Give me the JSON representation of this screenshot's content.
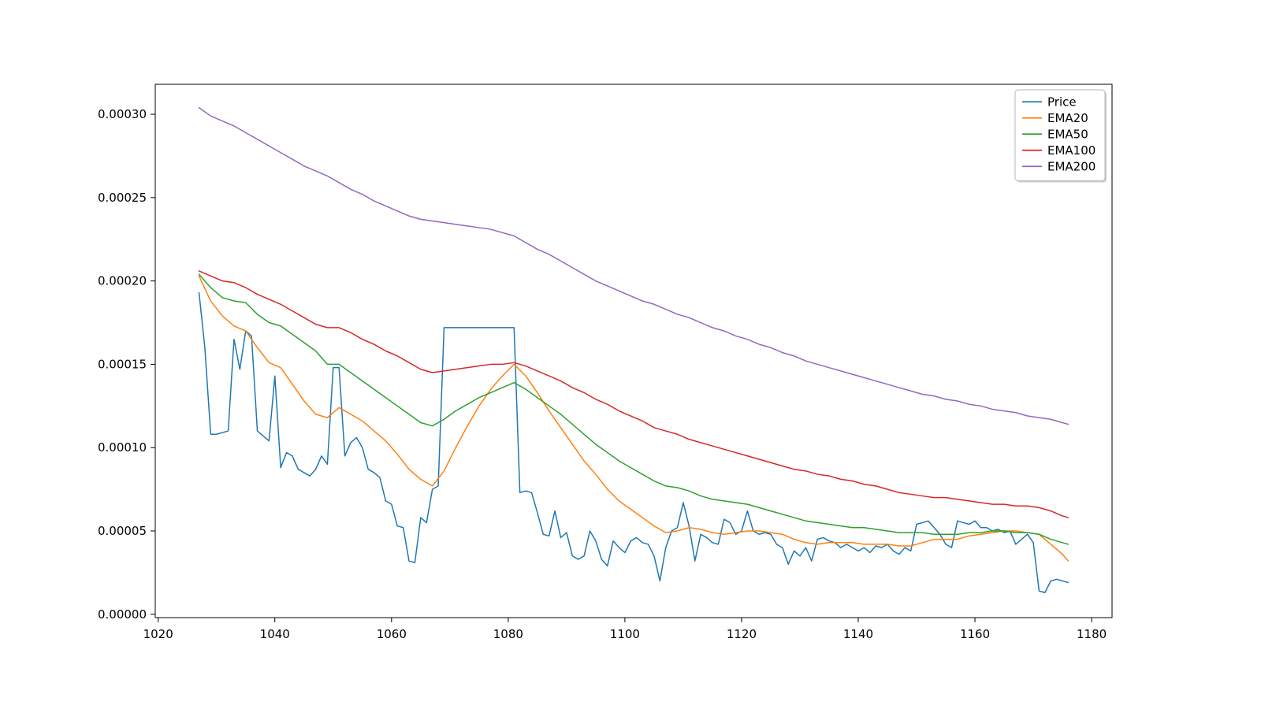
{
  "figure": {
    "background": "#ffffff",
    "plot_border_color": "#000000",
    "tick_color": "#000000"
  },
  "chart_data": {
    "type": "line",
    "title": "",
    "xlabel": "",
    "ylabel": "",
    "grid": false,
    "xlim": [
      1019.5,
      1183.5
    ],
    "ylim": [
      -2e-06,
      0.000318
    ],
    "xticks": [
      1020,
      1040,
      1060,
      1080,
      1100,
      1120,
      1140,
      1160,
      1180
    ],
    "xtick_labels": [
      "1020",
      "1040",
      "1060",
      "1080",
      "1100",
      "1120",
      "1140",
      "1160",
      "1180"
    ],
    "yticks": [
      0.0,
      5e-05,
      0.0001,
      0.00015,
      0.0002,
      0.00025,
      0.0003
    ],
    "ytick_labels": [
      "0.00000",
      "0.00005",
      "0.00010",
      "0.00015",
      "0.00020",
      "0.00025",
      "0.00030"
    ],
    "legend": {
      "position": "upper right",
      "entries": [
        "Price",
        "EMA20",
        "EMA50",
        "EMA100",
        "EMA200"
      ]
    },
    "ema_x": [
      1027,
      1029,
      1031,
      1033,
      1035,
      1037,
      1039,
      1041,
      1043,
      1045,
      1047,
      1049,
      1051,
      1053,
      1055,
      1057,
      1059,
      1061,
      1063,
      1065,
      1067,
      1069,
      1071,
      1073,
      1075,
      1077,
      1079,
      1081,
      1083,
      1085,
      1087,
      1089,
      1091,
      1093,
      1095,
      1097,
      1099,
      1101,
      1103,
      1105,
      1107,
      1109,
      1111,
      1113,
      1115,
      1117,
      1119,
      1121,
      1123,
      1125,
      1127,
      1129,
      1131,
      1133,
      1135,
      1137,
      1139,
      1141,
      1143,
      1145,
      1147,
      1149,
      1151,
      1153,
      1155,
      1157,
      1159,
      1161,
      1163,
      1165,
      1167,
      1169,
      1171,
      1173,
      1175,
      1176
    ],
    "series": [
      {
        "name": "Price",
        "color": "#1f77b4",
        "x": [
          1027,
          1028,
          1029,
          1030,
          1031,
          1032,
          1033,
          1034,
          1035,
          1036,
          1037,
          1038,
          1039,
          1040,
          1041,
          1042,
          1043,
          1044,
          1045,
          1046,
          1047,
          1048,
          1049,
          1050,
          1051,
          1052,
          1053,
          1054,
          1055,
          1056,
          1057,
          1058,
          1059,
          1060,
          1061,
          1062,
          1063,
          1064,
          1065,
          1066,
          1067,
          1068,
          1069,
          1070,
          1071,
          1072,
          1073,
          1074,
          1075,
          1076,
          1077,
          1078,
          1079,
          1080,
          1081,
          1082,
          1083,
          1084,
          1085,
          1086,
          1087,
          1088,
          1089,
          1090,
          1091,
          1092,
          1093,
          1094,
          1095,
          1096,
          1097,
          1098,
          1099,
          1100,
          1101,
          1102,
          1103,
          1104,
          1105,
          1106,
          1107,
          1108,
          1109,
          1110,
          1111,
          1112,
          1113,
          1114,
          1115,
          1116,
          1117,
          1118,
          1119,
          1120,
          1121,
          1122,
          1123,
          1124,
          1125,
          1126,
          1127,
          1128,
          1129,
          1130,
          1131,
          1132,
          1133,
          1134,
          1135,
          1136,
          1137,
          1138,
          1139,
          1140,
          1141,
          1142,
          1143,
          1144,
          1145,
          1146,
          1147,
          1148,
          1149,
          1150,
          1151,
          1152,
          1153,
          1154,
          1155,
          1156,
          1157,
          1158,
          1159,
          1160,
          1161,
          1162,
          1163,
          1164,
          1165,
          1166,
          1167,
          1168,
          1169,
          1170,
          1171,
          1172,
          1173,
          1174,
          1175,
          1176
        ],
        "y": [
          0.000193,
          0.00016,
          0.000108,
          0.000108,
          0.000109,
          0.00011,
          0.000165,
          0.000147,
          0.00017,
          0.000167,
          0.00011,
          0.000107,
          0.000104,
          0.000143,
          8.8e-05,
          9.7e-05,
          9.5e-05,
          8.7e-05,
          8.5e-05,
          8.3e-05,
          8.7e-05,
          9.5e-05,
          9e-05,
          0.000148,
          0.000148,
          9.5e-05,
          0.000103,
          0.000106,
          0.0001,
          8.7e-05,
          8.5e-05,
          8.2e-05,
          6.8e-05,
          6.6e-05,
          5.3e-05,
          5.2e-05,
          3.2e-05,
          3.1e-05,
          5.8e-05,
          5.5e-05,
          7.5e-05,
          7.7e-05,
          0.000172,
          0.000172,
          0.000172,
          0.000172,
          0.000172,
          0.000172,
          0.000172,
          0.000172,
          0.000172,
          0.000172,
          0.000172,
          0.000172,
          0.000172,
          7.3e-05,
          7.4e-05,
          7.3e-05,
          6.1e-05,
          4.8e-05,
          4.7e-05,
          6.2e-05,
          4.6e-05,
          4.9e-05,
          3.5e-05,
          3.3e-05,
          3.5e-05,
          5e-05,
          4.4e-05,
          3.3e-05,
          2.9e-05,
          4.4e-05,
          4e-05,
          3.7e-05,
          4.4e-05,
          4.6e-05,
          4.3e-05,
          4.2e-05,
          3.5e-05,
          2e-05,
          4e-05,
          5e-05,
          5.2e-05,
          6.7e-05,
          5.3e-05,
          3.2e-05,
          4.8e-05,
          4.6e-05,
          4.3e-05,
          4.2e-05,
          5.7e-05,
          5.5e-05,
          4.8e-05,
          5e-05,
          6.2e-05,
          5e-05,
          4.8e-05,
          4.9e-05,
          4.8e-05,
          4.2e-05,
          4e-05,
          3e-05,
          3.8e-05,
          3.5e-05,
          4e-05,
          3.2e-05,
          4.5e-05,
          4.6e-05,
          4.4e-05,
          4.3e-05,
          4e-05,
          4.2e-05,
          4e-05,
          3.8e-05,
          4e-05,
          3.7e-05,
          4.1e-05,
          4e-05,
          4.2e-05,
          3.8e-05,
          3.6e-05,
          4e-05,
          3.8e-05,
          5.4e-05,
          5.5e-05,
          5.6e-05,
          5.2e-05,
          4.8e-05,
          4.2e-05,
          4e-05,
          5.6e-05,
          5.5e-05,
          5.4e-05,
          5.6e-05,
          5.2e-05,
          5.2e-05,
          5e-05,
          5.1e-05,
          4.9e-05,
          5e-05,
          4.2e-05,
          4.5e-05,
          4.8e-05,
          4.3e-05,
          1.4e-05,
          1.3e-05,
          2e-05,
          2.1e-05,
          2e-05,
          1.9e-05
        ]
      },
      {
        "name": "EMA20",
        "color": "#ff7f0e",
        "x_ref": "ema_x",
        "y": [
          0.000203,
          0.000188,
          0.000179,
          0.000173,
          0.00017,
          0.00016,
          0.000151,
          0.000148,
          0.000138,
          0.000128,
          0.00012,
          0.000118,
          0.000124,
          0.00012,
          0.000116,
          0.00011,
          0.000104,
          9.6e-05,
          8.7e-05,
          8.1e-05,
          7.7e-05,
          8.6e-05,
          0.0001,
          0.000113,
          0.000125,
          0.000135,
          0.000143,
          0.00015,
          0.000143,
          0.000133,
          0.000122,
          0.000112,
          0.000102,
          9.2e-05,
          8.4e-05,
          7.5e-05,
          6.8e-05,
          6.3e-05,
          5.8e-05,
          5.3e-05,
          4.9e-05,
          5e-05,
          5.2e-05,
          5.1e-05,
          4.9e-05,
          4.8e-05,
          4.9e-05,
          5e-05,
          5e-05,
          4.9e-05,
          4.8e-05,
          4.5e-05,
          4.3e-05,
          4.2e-05,
          4.3e-05,
          4.3e-05,
          4.3e-05,
          4.2e-05,
          4.2e-05,
          4.2e-05,
          4.1e-05,
          4.1e-05,
          4.3e-05,
          4.5e-05,
          4.5e-05,
          4.5e-05,
          4.7e-05,
          4.8e-05,
          4.9e-05,
          5e-05,
          5e-05,
          4.9e-05,
          4.8e-05,
          4.2e-05,
          3.6e-05,
          3.2e-05
        ]
      },
      {
        "name": "EMA50",
        "color": "#2ca02c",
        "x_ref": "ema_x",
        "y": [
          0.000204,
          0.000196,
          0.00019,
          0.000188,
          0.000187,
          0.00018,
          0.000175,
          0.000173,
          0.000168,
          0.000163,
          0.000158,
          0.00015,
          0.00015,
          0.000145,
          0.00014,
          0.000135,
          0.00013,
          0.000125,
          0.00012,
          0.000115,
          0.000113,
          0.000117,
          0.000122,
          0.000126,
          0.00013,
          0.000133,
          0.000136,
          0.000139,
          0.000135,
          0.00013,
          0.000125,
          0.00012,
          0.000114,
          0.000108,
          0.000102,
          9.7e-05,
          9.2e-05,
          8.8e-05,
          8.4e-05,
          8e-05,
          7.7e-05,
          7.6e-05,
          7.4e-05,
          7.1e-05,
          6.9e-05,
          6.8e-05,
          6.7e-05,
          6.6e-05,
          6.4e-05,
          6.2e-05,
          6e-05,
          5.8e-05,
          5.6e-05,
          5.5e-05,
          5.4e-05,
          5.3e-05,
          5.2e-05,
          5.2e-05,
          5.1e-05,
          5e-05,
          4.9e-05,
          4.9e-05,
          4.9e-05,
          4.8e-05,
          4.8e-05,
          4.8e-05,
          4.9e-05,
          4.9e-05,
          5e-05,
          5e-05,
          4.9e-05,
          4.9e-05,
          4.8e-05,
          4.5e-05,
          4.3e-05,
          4.2e-05
        ]
      },
      {
        "name": "EMA100",
        "color": "#d62728",
        "x_ref": "ema_x",
        "y": [
          0.000206,
          0.000203,
          0.0002,
          0.000199,
          0.000196,
          0.000192,
          0.000189,
          0.000186,
          0.000182,
          0.000178,
          0.000174,
          0.000172,
          0.000172,
          0.000169,
          0.000165,
          0.000162,
          0.000158,
          0.000155,
          0.000151,
          0.000147,
          0.000145,
          0.000146,
          0.000147,
          0.000148,
          0.000149,
          0.00015,
          0.00015,
          0.000151,
          0.000149,
          0.000146,
          0.000143,
          0.00014,
          0.000136,
          0.000133,
          0.000129,
          0.000126,
          0.000122,
          0.000119,
          0.000116,
          0.000112,
          0.00011,
          0.000108,
          0.000105,
          0.000103,
          0.000101,
          9.9e-05,
          9.7e-05,
          9.5e-05,
          9.3e-05,
          9.1e-05,
          8.9e-05,
          8.7e-05,
          8.6e-05,
          8.4e-05,
          8.3e-05,
          8.1e-05,
          8e-05,
          7.8e-05,
          7.7e-05,
          7.5e-05,
          7.3e-05,
          7.2e-05,
          7.1e-05,
          7e-05,
          7e-05,
          6.9e-05,
          6.8e-05,
          6.7e-05,
          6.6e-05,
          6.6e-05,
          6.5e-05,
          6.5e-05,
          6.4e-05,
          6.2e-05,
          5.9e-05,
          5.8e-05
        ]
      },
      {
        "name": "EMA200",
        "color": "#9467bd",
        "x_ref": "ema_x",
        "y": [
          0.000304,
          0.000299,
          0.000296,
          0.000293,
          0.000289,
          0.000285,
          0.000281,
          0.000277,
          0.000273,
          0.000269,
          0.000266,
          0.000263,
          0.000259,
          0.000255,
          0.000252,
          0.000248,
          0.000245,
          0.000242,
          0.000239,
          0.000237,
          0.000236,
          0.000235,
          0.000234,
          0.000233,
          0.000232,
          0.000231,
          0.000229,
          0.000227,
          0.000223,
          0.000219,
          0.000216,
          0.000212,
          0.000208,
          0.000204,
          0.0002,
          0.000197,
          0.000194,
          0.000191,
          0.000188,
          0.000186,
          0.000183,
          0.00018,
          0.000178,
          0.000175,
          0.000172,
          0.00017,
          0.000167,
          0.000165,
          0.000162,
          0.00016,
          0.000157,
          0.000155,
          0.000152,
          0.00015,
          0.000148,
          0.000146,
          0.000144,
          0.000142,
          0.00014,
          0.000138,
          0.000136,
          0.000134,
          0.000132,
          0.000131,
          0.000129,
          0.000128,
          0.000126,
          0.000125,
          0.000123,
          0.000122,
          0.000121,
          0.000119,
          0.000118,
          0.000117,
          0.000115,
          0.000114
        ]
      }
    ]
  }
}
